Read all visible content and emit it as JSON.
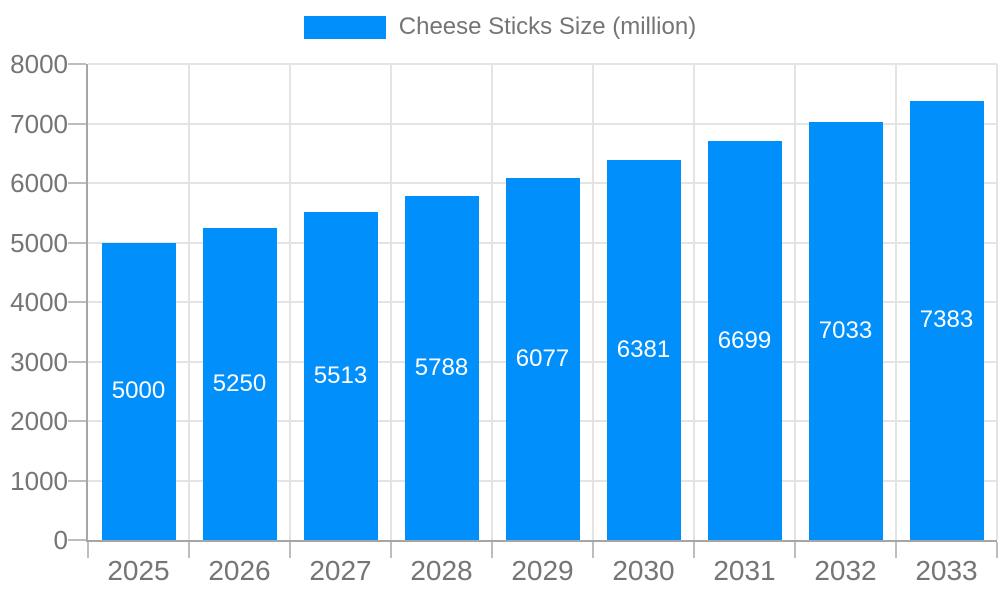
{
  "chart_data": {
    "type": "bar",
    "title": "Cheese Sticks Size (million)",
    "legend_position": "top",
    "categories": [
      "2025",
      "2026",
      "2027",
      "2028",
      "2029",
      "2030",
      "2031",
      "2032",
      "2033"
    ],
    "series": [
      {
        "name": "Cheese Sticks Size (million)",
        "values": [
          5000,
          5250,
          5513,
          5788,
          6077,
          6381,
          6699,
          7033,
          7383
        ]
      }
    ],
    "xlabel": "",
    "ylabel": "",
    "ylim": [
      0,
      8000
    ],
    "ytick_step": 1000,
    "ytick_labels": [
      "0",
      "1000",
      "2000",
      "3000",
      "4000",
      "5000",
      "6000",
      "7000",
      "8000"
    ],
    "grid": true,
    "value_label_position": "inside-center",
    "colors": {
      "bar": "#008FFB",
      "bar_value_text": "#FFFFFF",
      "axis_text": "#757575",
      "gridline": "#E4E4E4",
      "tick": "#BDBDBD",
      "axis_line": "#A6A6A6",
      "background": "#FFFFFF"
    }
  }
}
